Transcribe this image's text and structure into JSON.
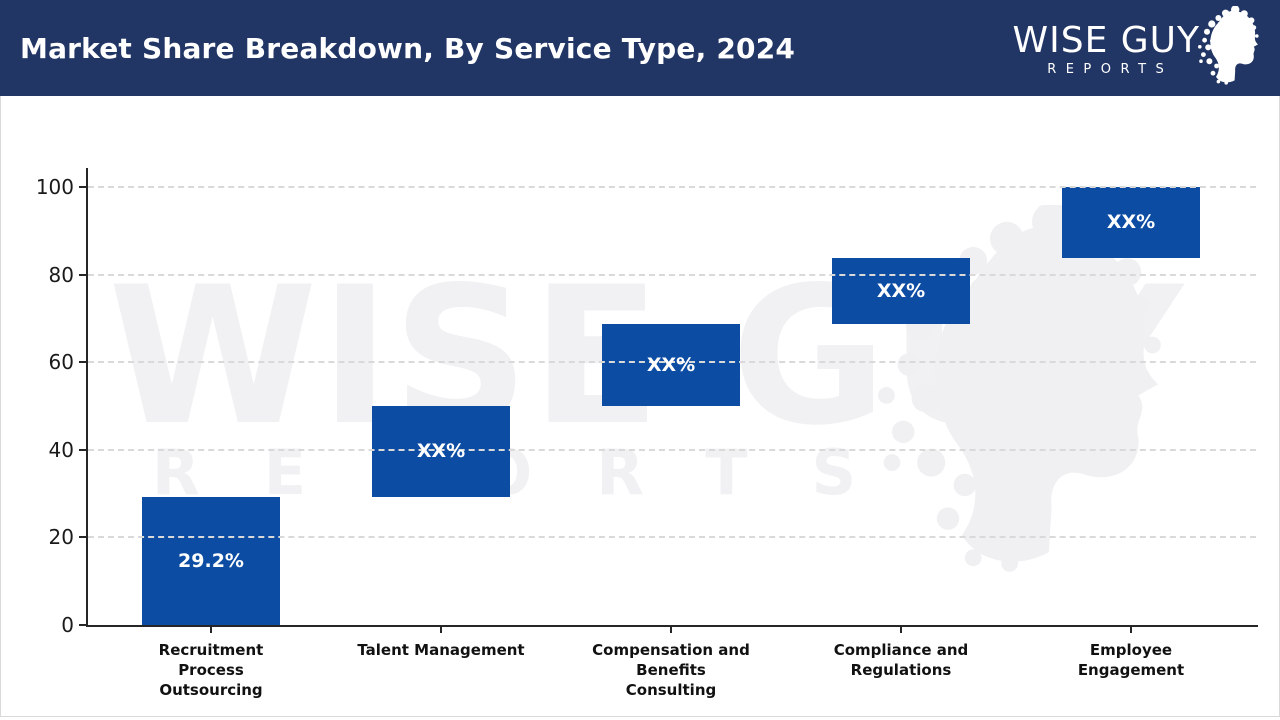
{
  "header": {
    "title": "Market Share Breakdown, By Service Type, 2024",
    "logo": {
      "name": "WISE GUY",
      "tagline": "REPORTS"
    }
  },
  "watermark": {
    "line1": "WISE GUY",
    "line2": "REPORTS"
  },
  "chart_data": {
    "type": "bar",
    "variant": "waterfall-segments",
    "title": "Market Share Breakdown, By Service Type, 2024",
    "categories": [
      "Recruitment Process Outsourcing",
      "Talent Management",
      "Compensation and Benefits Consulting",
      "Compliance and Regulations",
      "Employee Engagement"
    ],
    "category_label_lines": [
      [
        "Recruitment",
        "Process",
        "Outsourcing"
      ],
      [
        "Talent Management"
      ],
      [
        "Compensation and",
        "Benefits",
        "Consulting"
      ],
      [
        "Compliance and",
        "Regulations"
      ],
      [
        "Employee",
        "Engagement"
      ]
    ],
    "segments": [
      {
        "category": "Recruitment Process Outsourcing",
        "label": "29.2%",
        "start": 0,
        "end": 29.2
      },
      {
        "category": "Talent Management",
        "label": "XX%",
        "start": 29.2,
        "end": 50.1
      },
      {
        "category": "Compensation and Benefits Consulting",
        "label": "XX%",
        "start": 50.1,
        "end": 68.8
      },
      {
        "category": "Compliance and Regulations",
        "label": "XX%",
        "start": 68.8,
        "end": 83.9
      },
      {
        "category": "Employee Engagement",
        "label": "XX%",
        "start": 83.9,
        "end": 100
      }
    ],
    "yticks": [
      0,
      20,
      40,
      60,
      80,
      100
    ],
    "ylim": [
      0,
      104
    ],
    "grid": {
      "horizontal": true,
      "style": "dashed",
      "drawn_over_bars": true
    },
    "legend": null,
    "bar_color": "#0c4ca3",
    "xlabel": "",
    "ylabel": ""
  },
  "colors": {
    "header_bg": "#223666",
    "bar": "#0c4ca3",
    "grid": "#d9d9d9",
    "axis": "#262626",
    "watermark": "#f1f1f4"
  }
}
